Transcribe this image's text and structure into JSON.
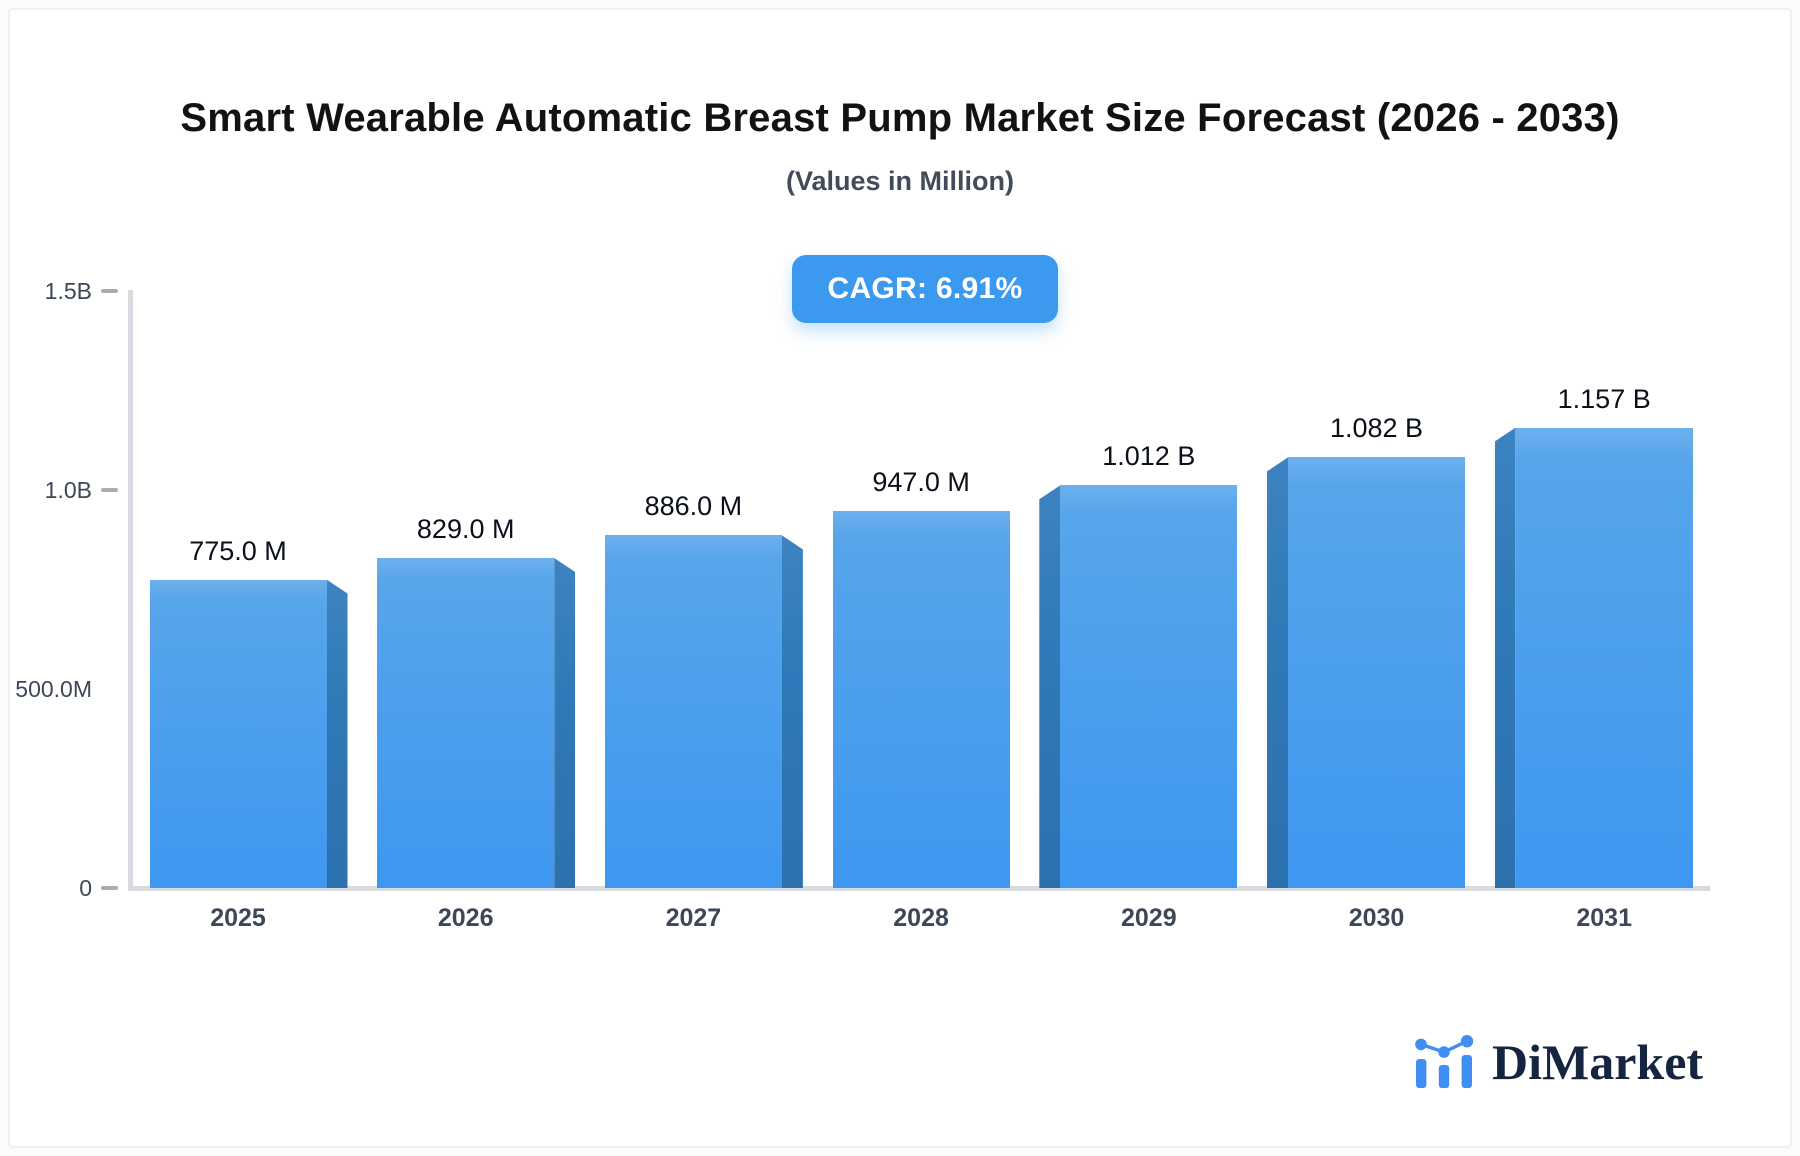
{
  "header": {
    "title": "Smart Wearable Automatic Breast Pump Market Size Forecast (2026 - 2033)",
    "subtitle": "(Values in Million)"
  },
  "cagr_badge": {
    "label": "CAGR: 6.91%"
  },
  "brand": {
    "name": "DiMarket",
    "icon": "mini-bar-chart-logo-icon"
  },
  "colors": {
    "badge_blue": "#3b9af0",
    "bar_face_top": "#57a5ea",
    "bar_face_bottom": "#3e97f1",
    "bar_side_dark": "#2f7ab8",
    "axis_gray": "#d7dade",
    "tick_text": "#3d4757",
    "title_text": "#121212",
    "brand_navy": "#16253f"
  },
  "chart_data": {
    "type": "bar",
    "title": "Smart Wearable Automatic Breast Pump Market Size Forecast (2026 - 2033)",
    "subtitle": "(Values in Million)",
    "annotation": "CAGR: 6.91%",
    "categories": [
      "2025",
      "2026",
      "2027",
      "2028",
      "2029",
      "2030",
      "2031"
    ],
    "values_millions": [
      775,
      829,
      886,
      947,
      1012,
      1082,
      1157
    ],
    "bar_labels": [
      "775.0 M",
      "829.0 M",
      "886.0 M",
      "947.0 M",
      "1.012 B",
      "1.082 B",
      "1.157 B"
    ],
    "bar_3d_side": [
      "right",
      "right",
      "right",
      "none",
      "left",
      "left",
      "left"
    ],
    "xlabel": "",
    "ylabel": "",
    "ylim_millions": [
      0,
      1500
    ],
    "grid": "off",
    "legend": "none",
    "y_axis_ticks": [
      {
        "label": "1.5B",
        "value_millions": 1500,
        "dash": true
      },
      {
        "label": "1.0B",
        "value_millions": 1000,
        "dash": true
      },
      {
        "label": "500.0M",
        "value_millions": 500,
        "dash": false
      },
      {
        "label": "0",
        "value_millions": 0,
        "dash": true
      }
    ]
  }
}
